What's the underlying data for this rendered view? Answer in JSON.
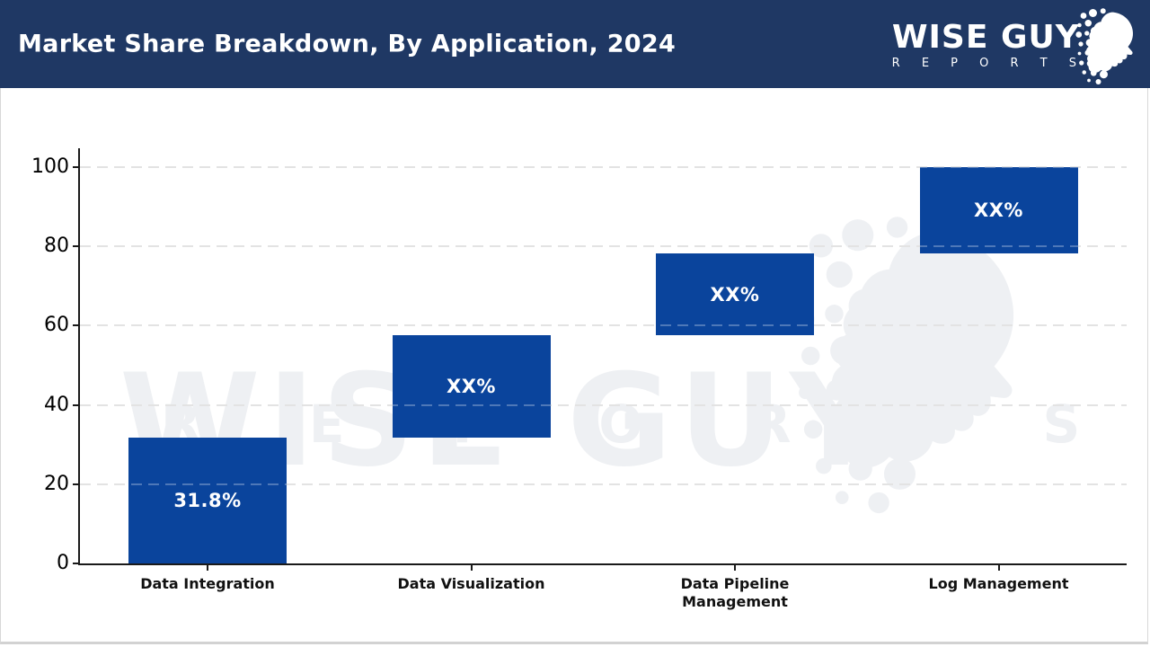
{
  "header": {
    "title": "Market Share Breakdown, By Application, 2024",
    "logo": {
      "primary": "WISE GUY",
      "secondary": "R E P O R T S"
    }
  },
  "watermark": {
    "primary": "WISE GUY",
    "secondary": "R E P O R T S"
  },
  "colors": {
    "header_bg": "#1f3864",
    "bar": "#0a449c",
    "grid": "#d8d8d8",
    "watermark": "#eef0f3"
  },
  "chart_data": {
    "type": "bar",
    "subtype": "floating-waterfall",
    "title": "Market Share Breakdown, By Application, 2024",
    "xlabel": "",
    "ylabel": "",
    "ylim": [
      0,
      100
    ],
    "yticks": [
      0,
      20,
      40,
      60,
      80,
      100
    ],
    "grid": "horizontal-dashed",
    "legend": "none",
    "categories": [
      "Data Integration",
      "Data Visualization",
      "Data Pipeline Management",
      "Log Management"
    ],
    "segments": [
      {
        "category": "Data Integration",
        "start": 0,
        "end": 31.8,
        "value": 31.8,
        "label": "31.8%"
      },
      {
        "category": "Data Visualization",
        "start": 31.8,
        "end": 57.5,
        "value": 25.7,
        "label": "XX%"
      },
      {
        "category": "Data Pipeline Management",
        "start": 57.5,
        "end": 78.2,
        "value": 20.7,
        "label": "XX%"
      },
      {
        "category": "Log Management",
        "start": 78.2,
        "end": 100,
        "value": 21.8,
        "label": "XX%"
      }
    ]
  }
}
